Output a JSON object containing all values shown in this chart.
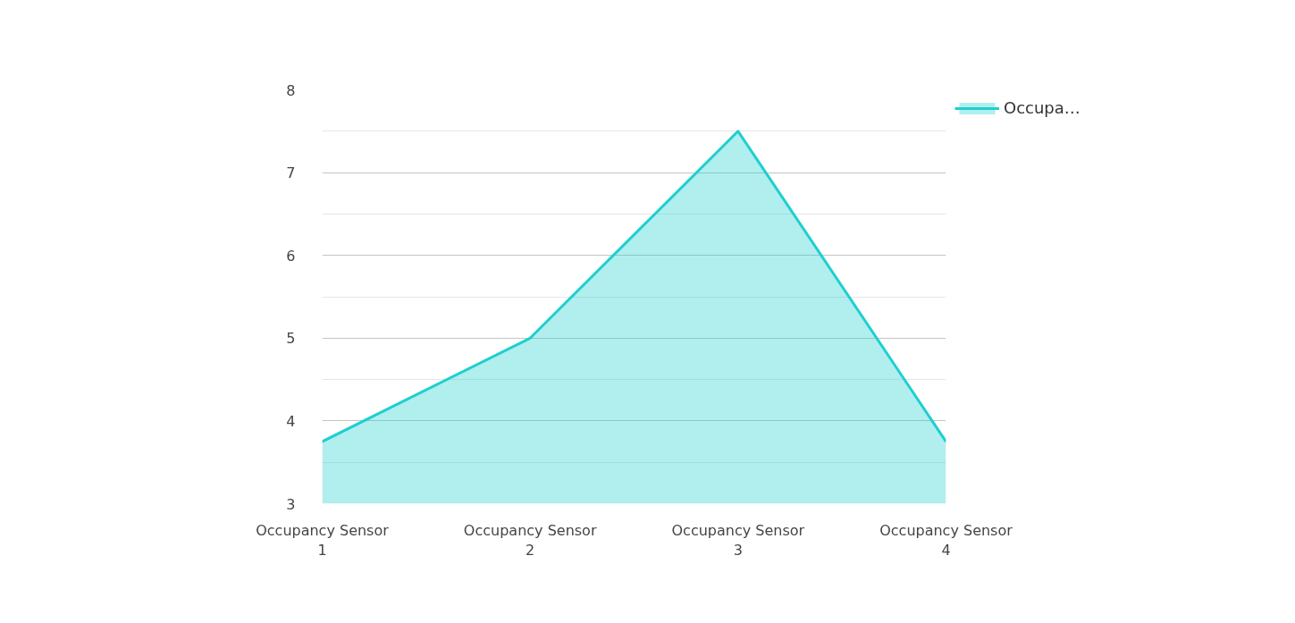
{
  "chart_data": {
    "type": "area",
    "categories": [
      "Occupancy Sensor 1",
      "Occupancy Sensor 2",
      "Occupancy Sensor 3",
      "Occupancy Sensor 4"
    ],
    "series": [
      {
        "name": "Occupa…",
        "color": "#1fcfcf",
        "values": [
          3.75,
          5,
          7.5,
          3.75
        ]
      }
    ],
    "ylim": [
      3,
      8
    ],
    "yticks": [
      3,
      4,
      5,
      6,
      7,
      8
    ],
    "grid": "y",
    "legend": "top right"
  }
}
